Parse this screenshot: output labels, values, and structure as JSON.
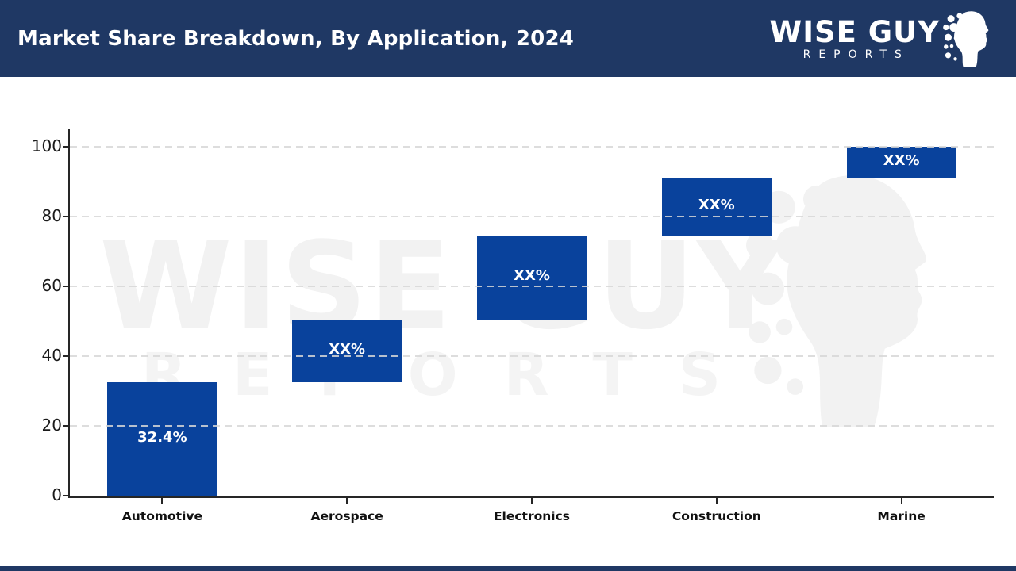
{
  "header": {
    "title": "Market Share Breakdown, By Application, 2024",
    "background": "#1f3864",
    "logo": {
      "line1": "WISE GUY",
      "line2": "REPORTS"
    }
  },
  "watermark": {
    "line1": "WISE GUY",
    "line2": "REPORTS"
  },
  "footer": {
    "background": "#1f3864"
  },
  "chart_data": {
    "type": "bar",
    "subtype": "waterfall",
    "title": "Market Share Breakdown, By Application, 2024",
    "xlabel": "",
    "ylabel": "",
    "categories": [
      "Automotive",
      "Aerospace",
      "Electronics",
      "Construction",
      "Marine"
    ],
    "series": [
      {
        "name": "Market Share (%)",
        "segments": [
          {
            "category": "Automotive",
            "start": 0,
            "end": 32.4,
            "label": "32.4%"
          },
          {
            "category": "Aerospace",
            "start": 32.4,
            "end": 50.2,
            "label": "XX%"
          },
          {
            "category": "Electronics",
            "start": 50.2,
            "end": 74.6,
            "label": "XX%"
          },
          {
            "category": "Construction",
            "start": 74.6,
            "end": 90.9,
            "label": "XX%"
          },
          {
            "category": "Marine",
            "start": 90.9,
            "end": 100,
            "label": "XX%"
          }
        ]
      }
    ],
    "ylim": [
      0,
      100
    ],
    "yticks": [
      0,
      20,
      40,
      60,
      80,
      100
    ],
    "grid": "horizontal-dashed",
    "legend": "none",
    "bar_color": "#09429c",
    "bar_label_color": "#ffffff",
    "axis_color": "#262626",
    "grid_color": "#d7d7d7"
  }
}
